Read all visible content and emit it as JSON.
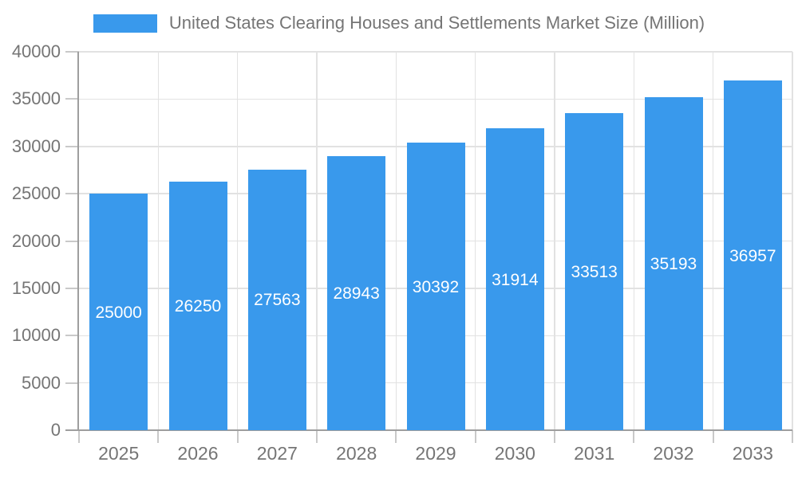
{
  "legend": {
    "label": "United States Clearing Houses and Settlements Market Size (Million)"
  },
  "chart_data": {
    "type": "bar",
    "title": "United States Clearing Houses and Settlements Market Size (Million)",
    "categories": [
      "2025",
      "2026",
      "2027",
      "2028",
      "2029",
      "2030",
      "2031",
      "2032",
      "2033"
    ],
    "values": [
      25000,
      26250,
      27563,
      28943,
      30392,
      31914,
      33513,
      35193,
      36957
    ],
    "value_labels": [
      "25000",
      "26250",
      "27563",
      "28943",
      "30392",
      "31914",
      "33513",
      "35193",
      "36957"
    ],
    "y_tick_labels": [
      "0",
      "5000",
      "10000",
      "15000",
      "20000",
      "25000",
      "30000",
      "35000",
      "40000"
    ],
    "xlabel": "",
    "ylabel": "",
    "ylim": [
      0,
      40000
    ],
    "ytick_step": 5000,
    "grid": true,
    "legend_position": "top",
    "colors": {
      "bar": "#3999EC",
      "axis": "#9E9E9E",
      "grid": "#E2E2E2",
      "tick": "#C9C9C9",
      "axis_text": "#757575",
      "value_label": "#FFFFFF",
      "background": "#FFFFFF"
    }
  }
}
